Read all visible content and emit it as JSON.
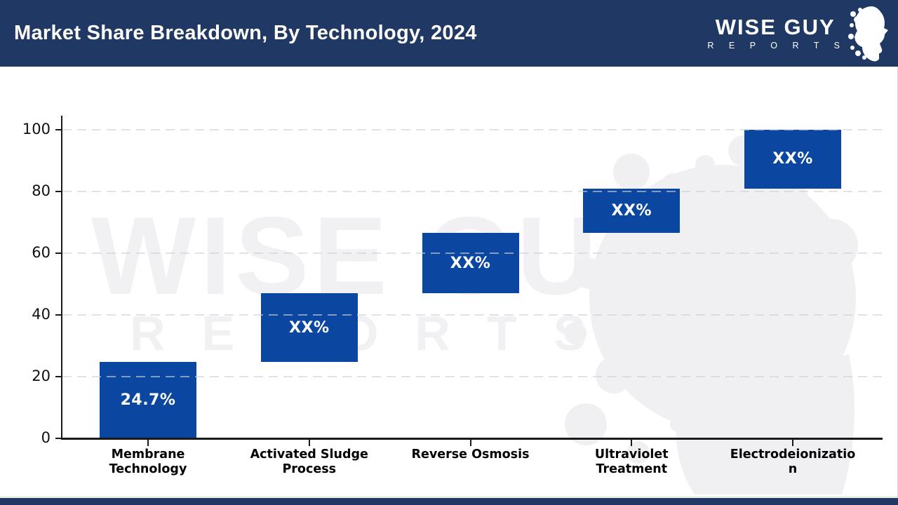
{
  "header": {
    "title": "Market Share Breakdown, By Technology, 2024",
    "bg_color": "#203864",
    "logo": {
      "line1": "WISE GUY",
      "line2": "R E P O R T S"
    }
  },
  "watermark": {
    "line1": "WISE GUY",
    "line2": "REPORTS"
  },
  "footer": {
    "bg_color": "#203864"
  },
  "chart_data": {
    "type": "bar",
    "subtype": "waterfall",
    "title": "Market Share Breakdown, By Technology, 2024",
    "categories": [
      "Membrane Technology",
      "Activated Sludge Process",
      "Reverse Osmosis",
      "Ultraviolet Treatment",
      "Electrodeionization"
    ],
    "segments": [
      {
        "category": "Membrane Technology",
        "label": "24.7%",
        "start": 0,
        "end": 24.7
      },
      {
        "category": "Activated Sludge Process",
        "label": "XX%",
        "start": 24.7,
        "end": 47
      },
      {
        "category": "Reverse Osmosis",
        "label": "XX%",
        "start": 47,
        "end": 66.5
      },
      {
        "category": "Ultraviolet Treatment",
        "label": "XX%",
        "start": 66.5,
        "end": 81
      },
      {
        "category": "Electrodeionization",
        "label": "XX%",
        "start": 81,
        "end": 100
      }
    ],
    "yticks": [
      0,
      20,
      40,
      60,
      80,
      100
    ],
    "ylim": [
      0,
      105
    ],
    "xlabel": "",
    "ylabel": "",
    "grid": "dashed-horizontal-lightgray",
    "legend": "none",
    "bar_color": "#0b47a1",
    "bar_label_color": "#ffffff",
    "axis_color": "#1a1a1a"
  }
}
